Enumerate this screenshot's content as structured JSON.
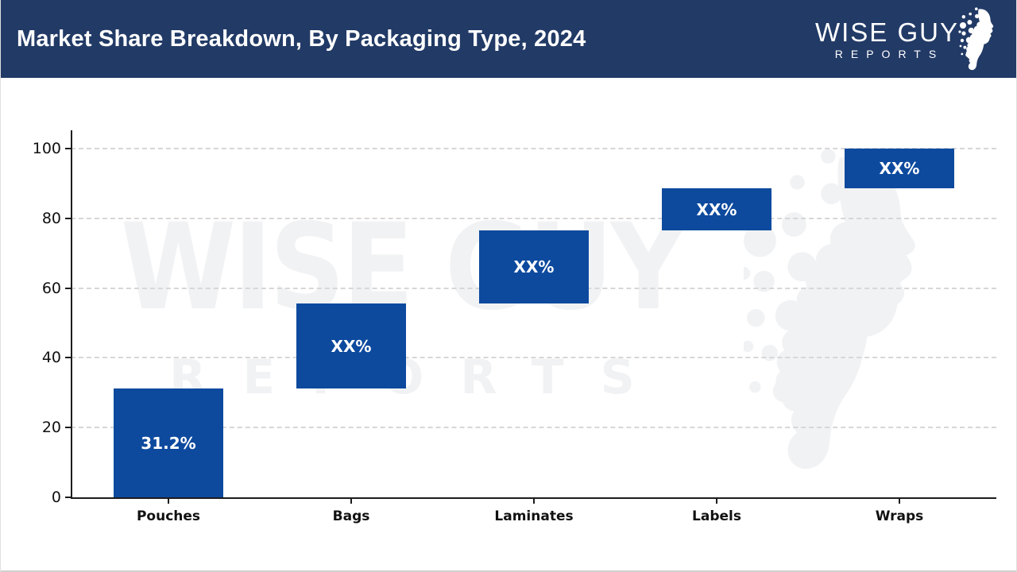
{
  "header": {
    "title": "Market Share Breakdown, By Packaging Type, 2024",
    "logo": {
      "line1": "WISE GUY",
      "line2": "REPORTS"
    }
  },
  "watermark": {
    "line1": "WISE GUY",
    "line2": "REPORTS"
  },
  "colors": {
    "header_bg": "#223a66",
    "bar": "#0d4a9e",
    "bar_label_text": "#ffffff",
    "axis": "#1c1c1c",
    "gridline": "#d7d7d7",
    "watermark": "#f1f2f4",
    "title_text": "#ffffff"
  },
  "chart_data": {
    "type": "bar",
    "subtype": "waterfall",
    "title": "Market Share Breakdown, By Packaging Type, 2024",
    "categories": [
      "Pouches",
      "Bags",
      "Laminates",
      "Labels",
      "Wraps"
    ],
    "segments": [
      {
        "category": "Pouches",
        "start": 0,
        "end": 31.2,
        "label": "31.2%"
      },
      {
        "category": "Bags",
        "start": 31.2,
        "end": 55.5,
        "label": "XX%"
      },
      {
        "category": "Laminates",
        "start": 55.5,
        "end": 76.5,
        "label": "XX%"
      },
      {
        "category": "Labels",
        "start": 76.5,
        "end": 88.5,
        "label": "XX%"
      },
      {
        "category": "Wraps",
        "start": 88.5,
        "end": 100,
        "label": "XX%"
      }
    ],
    "yticks": [
      0,
      20,
      40,
      60,
      80,
      100
    ],
    "ylim": [
      0,
      105
    ],
    "xlabel": "",
    "ylabel": "",
    "grid": "horizontal-dashed",
    "legend": "none"
  }
}
